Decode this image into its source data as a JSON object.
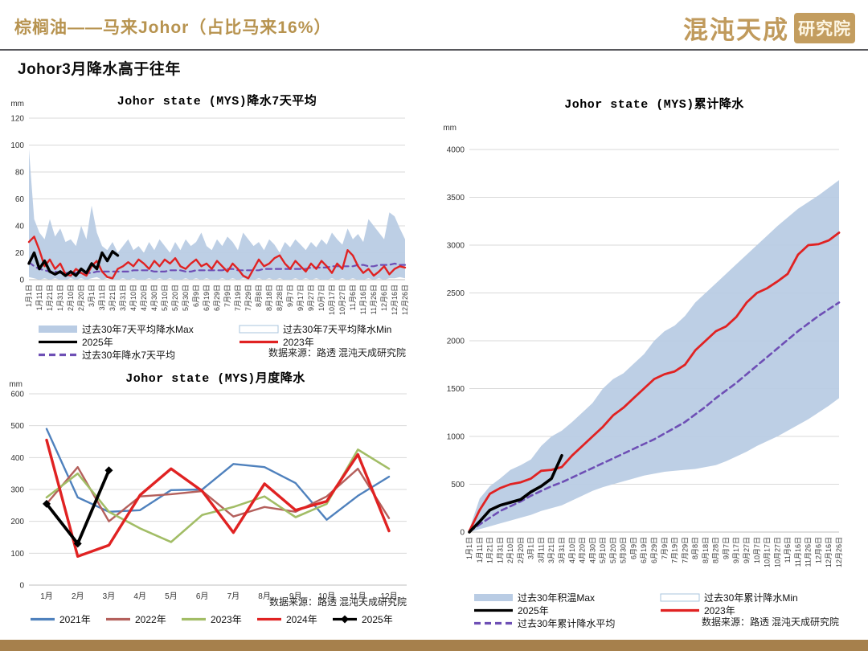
{
  "header": {
    "title": "棕榈油——马来Johor（占比马来16%）",
    "logo_text": "混沌天成",
    "logo_badge": "研究院"
  },
  "subtitle": "Johor3月降水高于往年",
  "theme": {
    "gold_text": "#B7934F",
    "logo_gold": "#C09A5C",
    "logo_badge_bg": "#C39D5F",
    "logo_badge_fg": "#FDF6E4",
    "divider": "#57575B",
    "footer_bar": "#A6804C",
    "grid": "#D9D9D9",
    "axis_line": "#BFBFBF"
  },
  "chart_data": [
    {
      "id": "daily7",
      "type": "line",
      "title": "Johor state (MYS)降水7天平均",
      "ylabel": "mm",
      "xlabel": "",
      "ylim": [
        0,
        120
      ],
      "yticks": [
        0,
        20,
        40,
        60,
        80,
        100,
        120
      ],
      "x_tick_labels": [
        "1月1日",
        "1月11日",
        "1月21日",
        "1月31日",
        "2月10日",
        "2月20日",
        "3月1日",
        "3月11日",
        "3月21日",
        "3月31日",
        "4月10日",
        "4月20日",
        "4月30日",
        "5月10日",
        "5月20日",
        "5月30日",
        "6月9日",
        "6月19日",
        "6月29日",
        "7月9日",
        "7月19日",
        "7月29日",
        "8月8日",
        "8月18日",
        "8月28日",
        "9月7日",
        "9月17日",
        "9月27日",
        "10月7日",
        "10月17日",
        "10月27日",
        "11月6日",
        "11月16日",
        "11月26日",
        "12月6日",
        "12月16日",
        "12月26日"
      ],
      "n_points": 73,
      "series": [
        {
          "name": "过去30年7天平均降水Max",
          "kind": "bandmax",
          "color": "#B9CCE4",
          "z": 0,
          "values": [
            97,
            45,
            35,
            30,
            45,
            32,
            38,
            28,
            30,
            25,
            40,
            30,
            55,
            35,
            25,
            22,
            28,
            20,
            25,
            30,
            22,
            25,
            20,
            28,
            22,
            30,
            25,
            20,
            28,
            22,
            30,
            25,
            28,
            35,
            25,
            22,
            30,
            25,
            32,
            28,
            22,
            35,
            30,
            25,
            28,
            22,
            30,
            26,
            20,
            28,
            24,
            30,
            26,
            22,
            28,
            24,
            30,
            26,
            35,
            30,
            26,
            38,
            30,
            34,
            28,
            45,
            40,
            35,
            30,
            50,
            47,
            38,
            30
          ]
        },
        {
          "name": "过去30年7天平均降水Min",
          "kind": "bandmin",
          "color": "#FFFFFF",
          "z": 0,
          "values": [
            2,
            1,
            0,
            1,
            0,
            1,
            0,
            0,
            1,
            0,
            1,
            0,
            1,
            2,
            0,
            1,
            0,
            0,
            1,
            0,
            1,
            0,
            0,
            1,
            0,
            1,
            0,
            1,
            0,
            0,
            1,
            0,
            1,
            0,
            1,
            0,
            0,
            1,
            0,
            1,
            0,
            1,
            0,
            0,
            1,
            0,
            1,
            0,
            1,
            0,
            0,
            1,
            0,
            1,
            0,
            1,
            0,
            0,
            1,
            0,
            1,
            0,
            1,
            0,
            0,
            1,
            0,
            1,
            0,
            1,
            1,
            2,
            1
          ]
        },
        {
          "name": "2025年",
          "kind": "line",
          "color": "#000000",
          "width": 3.4,
          "z": 3,
          "values": [
            12,
            20,
            8,
            14,
            6,
            4,
            6,
            3,
            6,
            3,
            8,
            5,
            12,
            8,
            20,
            14,
            21,
            18
          ]
        },
        {
          "name": "2023年",
          "kind": "line",
          "color": "#E02222",
          "width": 2.4,
          "z": 2,
          "values": [
            28,
            32,
            22,
            10,
            15,
            8,
            12,
            4,
            3,
            8,
            5,
            3,
            10,
            14,
            6,
            2,
            1,
            8,
            10,
            13,
            10,
            15,
            12,
            8,
            14,
            10,
            15,
            12,
            16,
            10,
            8,
            12,
            15,
            10,
            12,
            8,
            14,
            10,
            6,
            12,
            8,
            3,
            1,
            8,
            15,
            10,
            12,
            16,
            18,
            12,
            8,
            14,
            10,
            6,
            12,
            8,
            14,
            10,
            5,
            12,
            8,
            22,
            18,
            10,
            5,
            8,
            3,
            6,
            10,
            4,
            8,
            10,
            9
          ]
        },
        {
          "name": "过去30年降水7天平均",
          "kind": "dash",
          "color": "#6E4FB5",
          "width": 2.2,
          "z": 1,
          "values": [
            13,
            10,
            8,
            7,
            6,
            6,
            5,
            5,
            5,
            5,
            5,
            5,
            5,
            6,
            6,
            6,
            6,
            6,
            6,
            6,
            7,
            7,
            7,
            7,
            6,
            6,
            6,
            7,
            7,
            7,
            6,
            6,
            7,
            7,
            7,
            7,
            7,
            7,
            8,
            8,
            7,
            7,
            7,
            7,
            7,
            8,
            8,
            8,
            8,
            8,
            8,
            8,
            8,
            8,
            9,
            9,
            9,
            9,
            10,
            10,
            10,
            10,
            10,
            11,
            11,
            10,
            10,
            11,
            11,
            11,
            12,
            11,
            11
          ]
        }
      ],
      "legend": [
        {
          "label": "过去30年7天平均降水Max",
          "swatch": "band",
          "color": "#B9CCE4",
          "row": 0,
          "col": 0
        },
        {
          "label": "过去30年7天平均降水Min",
          "swatch": "band-empty",
          "color": "#FFFFFF",
          "row": 0,
          "col": 1
        },
        {
          "label": "2025年",
          "swatch": "line",
          "color": "#000000",
          "row": 1,
          "col": 0
        },
        {
          "label": "2023年",
          "swatch": "line",
          "color": "#E02222",
          "row": 1,
          "col": 1
        },
        {
          "label": "过去30年降水7天平均",
          "swatch": "dash",
          "color": "#6E4FB5",
          "row": 2,
          "col": 0
        }
      ],
      "source_text": "数据来源：路透 混沌天成研究院"
    },
    {
      "id": "monthly",
      "type": "line",
      "title": "Johor state (MYS)月度降水",
      "ylabel": "mm",
      "xlabel": "",
      "ylim": [
        0,
        600
      ],
      "yticks": [
        0,
        100,
        200,
        300,
        400,
        500,
        600
      ],
      "x_tick_labels": [
        "1月",
        "2月",
        "3月",
        "4月",
        "5月",
        "6月",
        "7月",
        "8月",
        "9月",
        "10月",
        "11月",
        "12月"
      ],
      "n_points": 12,
      "series": [
        {
          "name": "2021年",
          "kind": "line",
          "color": "#4F81BD",
          "width": 2.4,
          "z": 1,
          "values": [
            490,
            275,
            230,
            235,
            298,
            300,
            380,
            370,
            320,
            205,
            280,
            340
          ]
        },
        {
          "name": "2022年",
          "kind": "line",
          "color": "#B4605C",
          "width": 2.4,
          "z": 2,
          "values": [
            255,
            370,
            200,
            278,
            285,
            295,
            215,
            245,
            230,
            278,
            365,
            210
          ]
        },
        {
          "name": "2023年",
          "kind": "line",
          "color": "#A2BD66",
          "width": 2.6,
          "z": 3,
          "values": [
            275,
            350,
            230,
            178,
            135,
            220,
            245,
            278,
            213,
            255,
            425,
            365
          ]
        },
        {
          "name": "2024年",
          "kind": "line",
          "color": "#E02222",
          "width": 3.4,
          "z": 4,
          "values": [
            455,
            90,
            125,
            282,
            365,
            295,
            165,
            318,
            235,
            263,
            410,
            170
          ]
        },
        {
          "name": "2025年",
          "kind": "line",
          "color": "#000000",
          "width": 3.8,
          "marker": "diamond",
          "z": 5,
          "values": [
            255,
            130,
            360
          ]
        }
      ],
      "legend": [
        {
          "label": "2021年",
          "swatch": "line",
          "color": "#4F81BD",
          "row": 0,
          "col": 0
        },
        {
          "label": "2022年",
          "swatch": "line",
          "color": "#B4605C",
          "row": 0,
          "col": 1
        },
        {
          "label": "2023年",
          "swatch": "line",
          "color": "#A2BD66",
          "row": 0,
          "col": 2
        },
        {
          "label": "2024年",
          "swatch": "line",
          "color": "#E02222",
          "row": 0,
          "col": 3
        },
        {
          "label": "2025年",
          "swatch": "line-diamond",
          "color": "#000000",
          "row": 0,
          "col": 4
        }
      ],
      "source_text": "数据来源：路透 混沌天成研究院"
    },
    {
      "id": "cumulative",
      "type": "line",
      "title": "Johor state (MYS)累计降水",
      "ylabel": "mm",
      "xlabel": "",
      "ylim": [
        0,
        4000
      ],
      "yticks": [
        0,
        500,
        1000,
        1500,
        2000,
        2500,
        3000,
        3500,
        4000
      ],
      "x_tick_labels": [
        "1月1日",
        "1月11日",
        "1月21日",
        "1月31日",
        "2月10日",
        "2月20日",
        "3月1日",
        "3月11日",
        "3月21日",
        "3月31日",
        "4月10日",
        "4月20日",
        "4月30日",
        "5月10日",
        "5月20日",
        "5月30日",
        "6月9日",
        "6月19日",
        "6月29日",
        "7月9日",
        "7月19日",
        "7月29日",
        "8月8日",
        "8月18日",
        "8月28日",
        "9月7日",
        "9月17日",
        "9月27日",
        "10月7日",
        "10月17日",
        "10月27日",
        "11月6日",
        "11月16日",
        "11月26日",
        "12月6日",
        "12月16日",
        "12月26日"
      ],
      "n_points": 37,
      "series": [
        {
          "name": "过去30年积温Max",
          "kind": "bandmax",
          "color": "#B9CCE4",
          "z": 0,
          "values": [
            30,
            350,
            480,
            560,
            650,
            700,
            760,
            900,
            1000,
            1060,
            1150,
            1250,
            1350,
            1500,
            1600,
            1660,
            1760,
            1860,
            2000,
            2100,
            2160,
            2260,
            2400,
            2500,
            2600,
            2700,
            2800,
            2900,
            3000,
            3100,
            3200,
            3290,
            3380,
            3450,
            3520,
            3600,
            3680
          ]
        },
        {
          "name": "过去30年累计降水Min",
          "kind": "bandmin",
          "color": "#FFFFFF",
          "z": 0,
          "values": [
            0,
            30,
            60,
            90,
            120,
            150,
            180,
            220,
            250,
            280,
            330,
            380,
            430,
            470,
            500,
            530,
            560,
            590,
            610,
            630,
            640,
            650,
            660,
            680,
            700,
            740,
            790,
            840,
            900,
            950,
            1000,
            1060,
            1120,
            1180,
            1250,
            1320,
            1400
          ]
        },
        {
          "name": "2025年",
          "kind": "line",
          "color": "#000000",
          "width": 3.6,
          "z": 3,
          "values": [
            0,
            110,
            230,
            280,
            310,
            340,
            420,
            480,
            560,
            800
          ]
        },
        {
          "name": "2023年",
          "kind": "line",
          "color": "#E02222",
          "width": 2.8,
          "z": 2,
          "values": [
            10,
            230,
            400,
            460,
            500,
            520,
            560,
            640,
            650,
            680,
            800,
            900,
            1000,
            1100,
            1220,
            1300,
            1400,
            1500,
            1600,
            1650,
            1680,
            1750,
            1900,
            2000,
            2100,
            2150,
            2250,
            2400,
            2500,
            2550,
            2620,
            2700,
            2900,
            3000,
            3010,
            3050,
            3130
          ]
        },
        {
          "name": "过去30年累计降水平均",
          "kind": "dash",
          "color": "#6E4FB5",
          "width": 2.6,
          "z": 1,
          "values": [
            5,
            80,
            150,
            220,
            270,
            320,
            380,
            430,
            480,
            520,
            570,
            620,
            670,
            720,
            770,
            820,
            870,
            920,
            970,
            1030,
            1090,
            1150,
            1230,
            1310,
            1400,
            1480,
            1560,
            1650,
            1740,
            1830,
            1920,
            2010,
            2100,
            2180,
            2260,
            2330,
            2400
          ]
        }
      ],
      "legend": [
        {
          "label": "过去30年积温Max",
          "swatch": "band",
          "color": "#B9CCE4",
          "row": 0,
          "col": 0
        },
        {
          "label": "过去30年累计降水Min",
          "swatch": "band-empty",
          "color": "#FFFFFF",
          "row": 0,
          "col": 1
        },
        {
          "label": "2025年",
          "swatch": "line",
          "color": "#000000",
          "row": 1,
          "col": 0
        },
        {
          "label": "2023年",
          "swatch": "line",
          "color": "#E02222",
          "row": 1,
          "col": 1
        },
        {
          "label": "过去30年累计降水平均",
          "swatch": "dash",
          "color": "#6E4FB5",
          "row": 2,
          "col": 0
        }
      ],
      "source_text": "数据来源：路透 混沌天成研究院"
    }
  ]
}
